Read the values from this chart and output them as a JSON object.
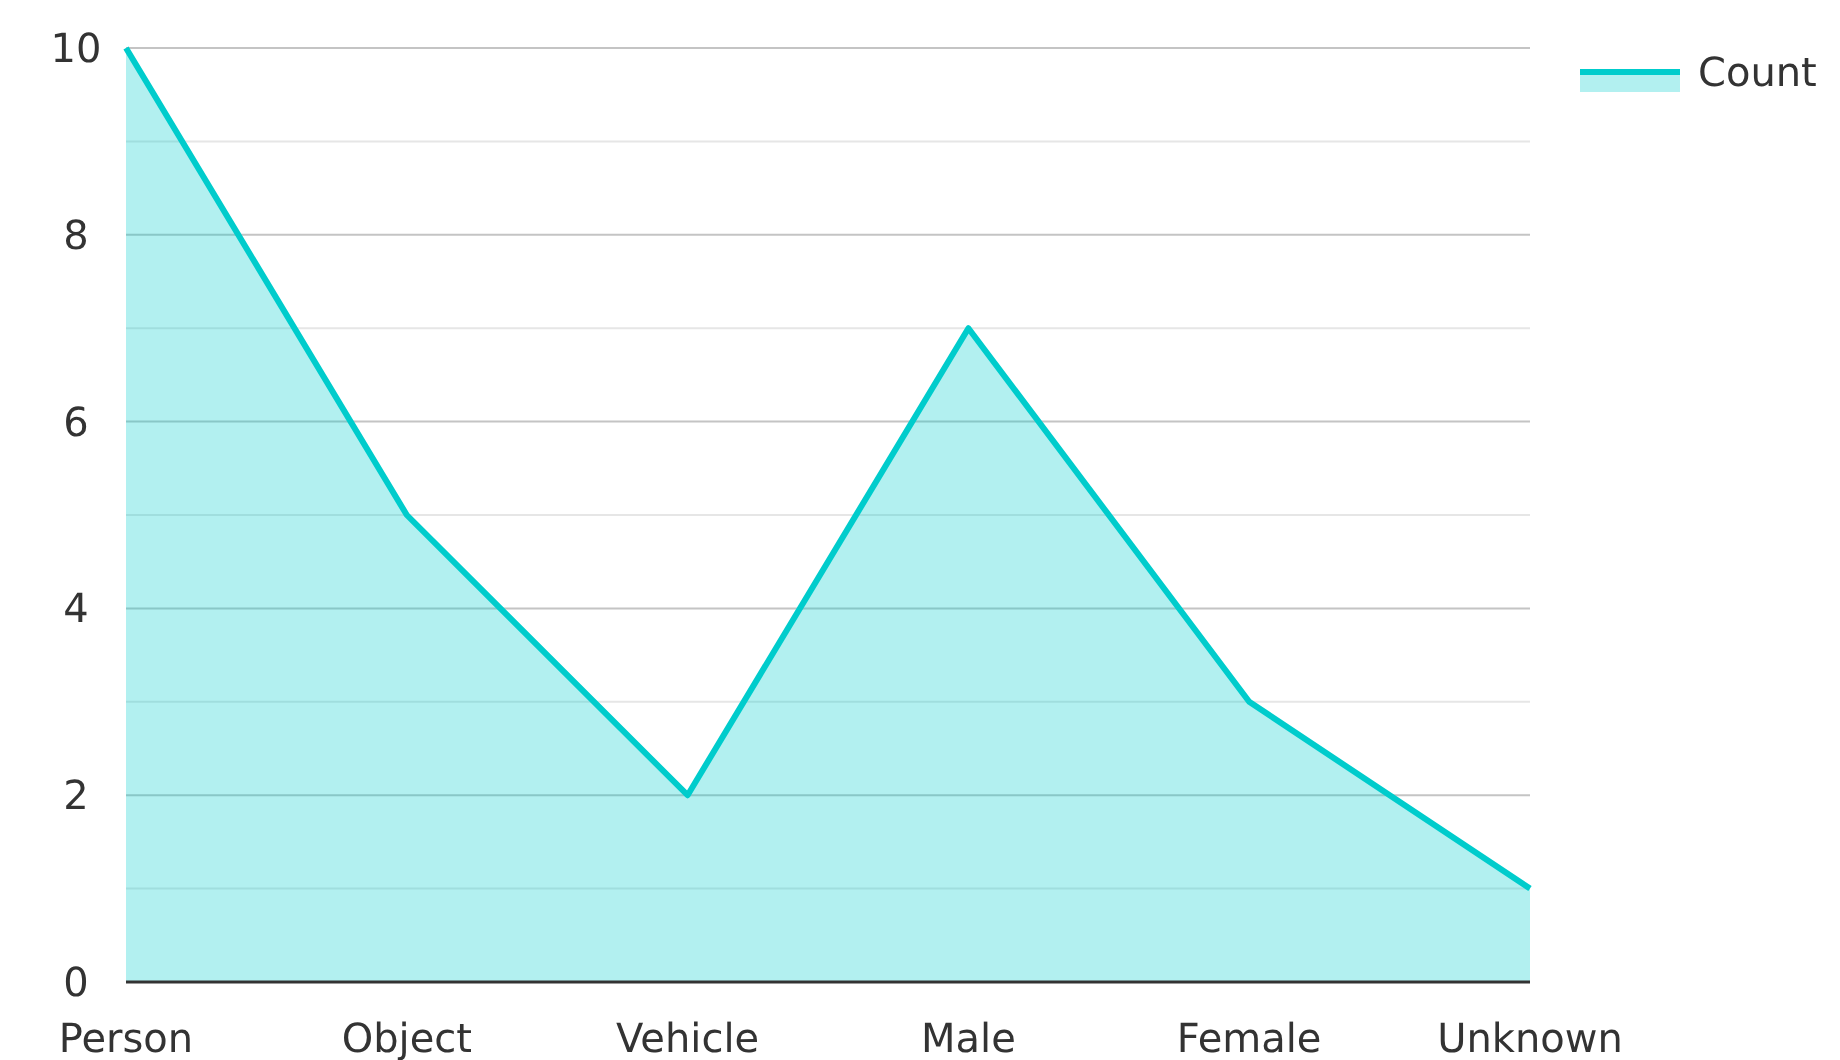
{
  "chart_data": {
    "type": "area",
    "categories": [
      "Person",
      "Object",
      "Vehicle",
      "Male",
      "Female",
      "Unknown"
    ],
    "series": [
      {
        "name": "Count",
        "color": "#00cccc",
        "values": [
          10,
          5,
          2,
          7,
          3,
          1
        ]
      }
    ],
    "ylim": [
      0,
      10
    ],
    "yticks": [
      0,
      {
        "value": 1,
        "label": null
      },
      2,
      {
        "value": 3,
        "label": null
      },
      4,
      {
        "value": 5,
        "label": null
      },
      6,
      {
        "value": 7,
        "label": null
      },
      8,
      {
        "value": 9,
        "label": null
      },
      10
    ],
    "grid": "y",
    "legend": "top right"
  }
}
